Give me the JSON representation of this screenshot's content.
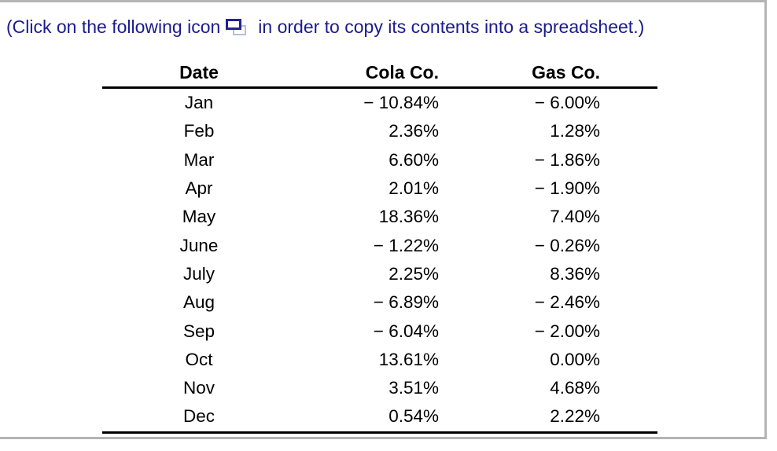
{
  "instruction": {
    "prefix": "(Click on the following icon",
    "suffix": "in order to copy its contents into a spreadsheet.)",
    "icon": "copy-icon"
  },
  "colors": {
    "instruction_text": "#1b1b8c",
    "icon_front_border": "#23238f",
    "icon_back_border": "#b9bdd9",
    "table_text": "#000000",
    "table_rule": "#000000",
    "panel_border": "#b4b4b4"
  },
  "table": {
    "columns": [
      "Date",
      "Cola Co.",
      "Gas Co."
    ],
    "rows": [
      {
        "date": "Jan",
        "cola": "− 10.84%",
        "gas": "− 6.00%"
      },
      {
        "date": "Feb",
        "cola": "2.36%",
        "gas": "1.28%"
      },
      {
        "date": "Mar",
        "cola": "6.60%",
        "gas": "− 1.86%"
      },
      {
        "date": "Apr",
        "cola": "2.01%",
        "gas": "− 1.90%"
      },
      {
        "date": "May",
        "cola": "18.36%",
        "gas": "7.40%"
      },
      {
        "date": "June",
        "cola": "− 1.22%",
        "gas": "− 0.26%"
      },
      {
        "date": "July",
        "cola": "2.25%",
        "gas": "8.36%"
      },
      {
        "date": "Aug",
        "cola": "− 6.89%",
        "gas": "− 2.46%"
      },
      {
        "date": "Sep",
        "cola": "− 6.04%",
        "gas": "− 2.00%"
      },
      {
        "date": "Oct",
        "cola": "13.61%",
        "gas": "0.00%"
      },
      {
        "date": "Nov",
        "cola": "3.51%",
        "gas": "4.68%"
      },
      {
        "date": "Dec",
        "cola": "0.54%",
        "gas": "2.22%"
      }
    ]
  }
}
